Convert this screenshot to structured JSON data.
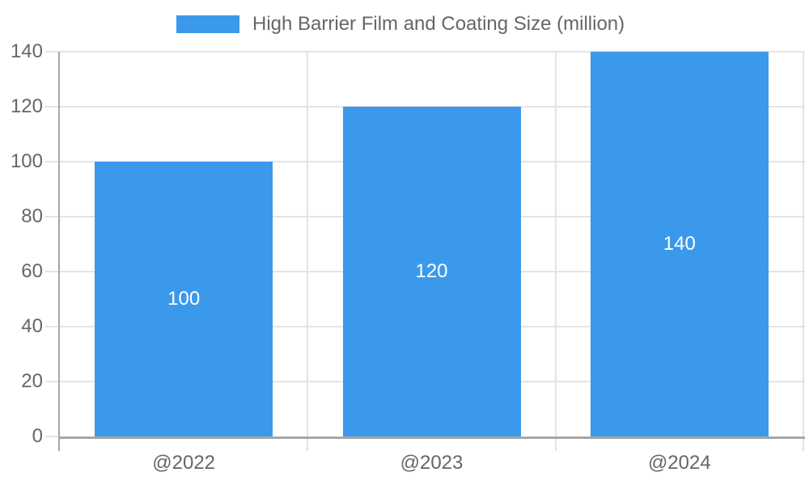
{
  "chart_data": {
    "type": "bar",
    "title": "High Barrier Film and Coating Size (million)",
    "categories": [
      "@2022",
      "@2023",
      "@2024"
    ],
    "series": [
      {
        "name": "High Barrier Film and Coating Size (million)",
        "values": [
          100,
          120,
          140
        ]
      }
    ],
    "data_labels": [
      "100",
      "120",
      "140"
    ],
    "xlabel": "",
    "ylabel": "",
    "ylim": [
      0,
      140
    ],
    "yticks": [
      0,
      20,
      40,
      60,
      80,
      100,
      120,
      140
    ],
    "grid": true,
    "legend_position": "top-center",
    "colors": {
      "bar": "#3B99EC",
      "grid": "#E4E4E4",
      "axis": "#A6A6A6",
      "tick_label": "#666666",
      "legend_text": "#666666",
      "data_label": "#FFFFFF",
      "background": "#FFFFFF"
    }
  }
}
